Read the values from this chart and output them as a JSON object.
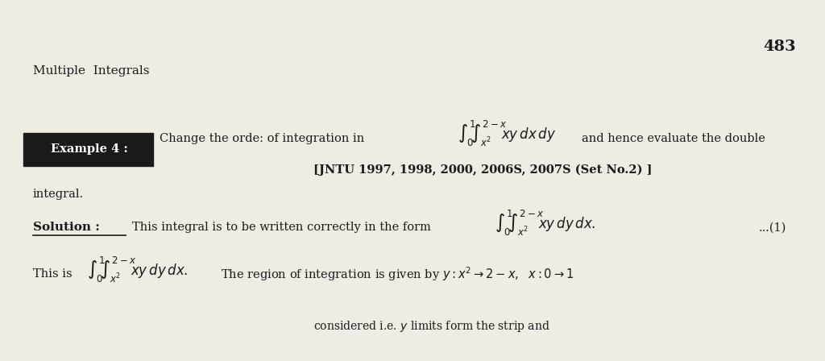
{
  "page_number": "483",
  "section_title": "Multiple  Integrals",
  "example_label": "Example 4 :",
  "main_text_line1": "Change the orde: of integration in",
  "main_text_line2": "and hence evaluate the double",
  "citation": "[JNTU 1997, 1998, 2000, 2006S, 2007S (Set No.2) ]",
  "word_integral": "integral.",
  "solution_label": "Solution :",
  "solution_text": "This integral is to be written correctly in the form",
  "eq_number": "...(1)",
  "this_is_text": "This is",
  "region_text": "The region of integration is given by $y: x^2 \\to 2-x,\\ \\ x: 0 \\to 1$",
  "bottom_text": "considered i.e. $y$ limits form the strip and",
  "text_color": "#1a1a1a",
  "page_bg": "#c8b89a",
  "page_color": "#f0ece4"
}
